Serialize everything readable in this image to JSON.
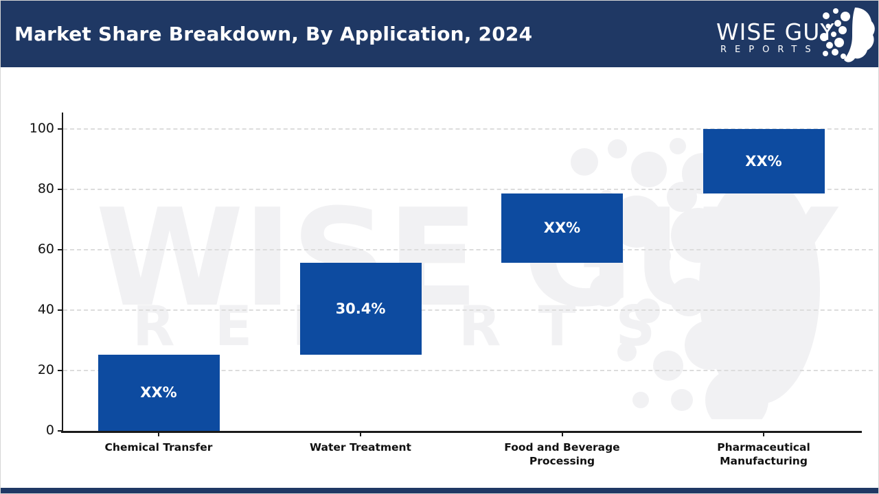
{
  "header": {
    "title": "Market Share Breakdown, By Application, 2024",
    "bg_color": "#1f3864",
    "logo": {
      "line1": "WISE GUY",
      "line2": "REPORTS"
    }
  },
  "watermark": {
    "line1": "WISE GUY",
    "line2": "REPORTS"
  },
  "chart_data": {
    "type": "bar",
    "subtype": "waterfall",
    "title": "Market Share Breakdown, By Application, 2024",
    "categories": [
      "Chemical Transfer",
      "Water Treatment",
      "Food and Beverage Processing",
      "Pharmaceutical Manufacturing"
    ],
    "category_lines": [
      [
        "Chemical Transfer"
      ],
      [
        "Water Treatment"
      ],
      [
        "Food and Beverage",
        "Processing"
      ],
      [
        "Pharmaceutical",
        "Manufacturing"
      ]
    ],
    "segments": [
      {
        "start": 0,
        "end": 25.3,
        "value_label": "XX%"
      },
      {
        "start": 25.3,
        "end": 55.7,
        "value_label": "30.4%"
      },
      {
        "start": 55.7,
        "end": 78.7,
        "value_label": "XX%"
      },
      {
        "start": 78.7,
        "end": 100,
        "value_label": "XX%"
      }
    ],
    "xlabel": "",
    "ylabel": "",
    "ylim": [
      0,
      100
    ],
    "yticks": [
      0,
      20,
      40,
      60,
      80,
      100
    ],
    "grid": "horizontal dashed",
    "legend": "none",
    "bar_color": "#0d4ba0",
    "value_label_color": "#ffffff",
    "axis_color": "#1a1a1a"
  }
}
